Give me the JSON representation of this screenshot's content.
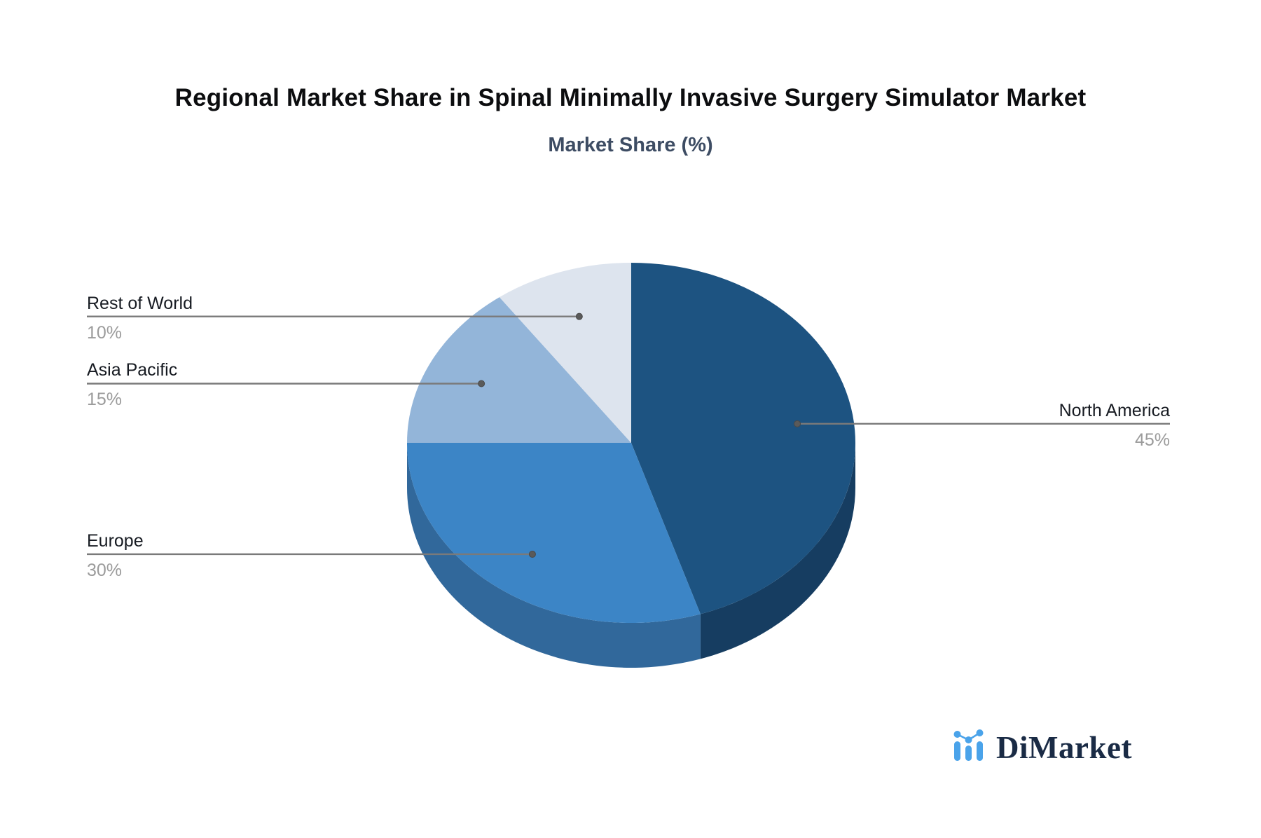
{
  "header": {
    "title": "Regional Market Share in Spinal Minimally Invasive Surgery Simulator Market",
    "subtitle": "Market Share (%)"
  },
  "chart_data": {
    "type": "pie",
    "title": "Regional Market Share in Spinal Minimally Invasive Surgery Simulator Market",
    "subtitle": "Market Share (%)",
    "unit": "%",
    "style": "3d-pie",
    "direction": "clockwise",
    "start_angle_deg": 0,
    "legend_position": "callout-labels",
    "categories": [
      "North America",
      "Europe",
      "Asia Pacific",
      "Rest of World"
    ],
    "values": [
      45,
      30,
      15,
      10
    ],
    "slices": [
      {
        "label": "North America",
        "value": 45,
        "display": "45%",
        "color": "#1d5381",
        "side_color": "#163d61"
      },
      {
        "label": "Europe",
        "value": 30,
        "display": "30%",
        "color": "#3c85c6",
        "side_color": "#31689b"
      },
      {
        "label": "Asia Pacific",
        "value": 15,
        "display": "15%",
        "color": "#93b5d9",
        "side_color": "#7d9cbc"
      },
      {
        "label": "Rest of World",
        "value": 10,
        "display": "10%",
        "color": "#dde4ee",
        "side_color": "#c2c9d6"
      }
    ]
  },
  "callout": {
    "line_color": "#7a7a7a",
    "dot_color": "#5a5a5a",
    "dot_ring_color": "#494949",
    "name_color": "#171b22",
    "pct_color": "#9b9b9b"
  },
  "branding": {
    "logo_text": "DiMarket",
    "logo_icon": "bar-line-chart-icon",
    "logo_text_color": "#1a2b45",
    "logo_icon_color": "#4aa3ea"
  }
}
